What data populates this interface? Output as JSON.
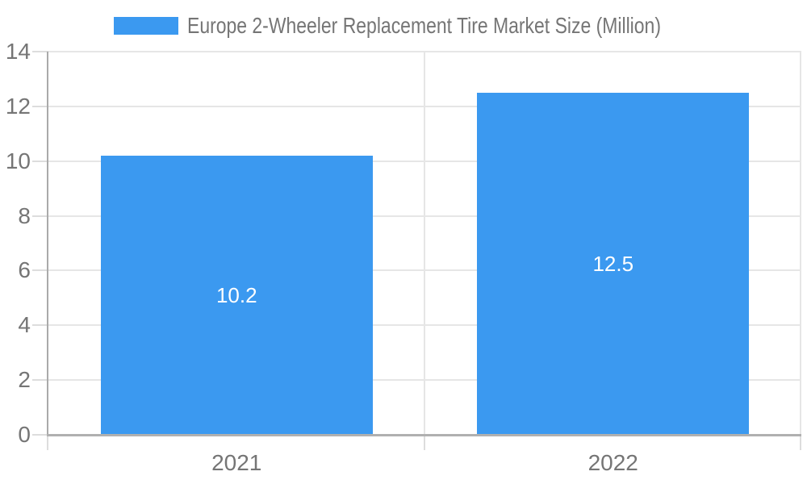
{
  "chart_data": {
    "type": "bar",
    "title": "Europe 2-Wheeler Replacement Tire Market Size (Million)",
    "legend": {
      "label": "Europe 2-Wheeler Replacement Tire Market Size (Million)",
      "position": "top"
    },
    "categories": [
      "2021",
      "2022"
    ],
    "values": [
      10.2,
      12.5
    ],
    "data_labels": [
      "10.2",
      "12.5"
    ],
    "xlabel": "",
    "ylabel": "",
    "ylim": [
      0,
      14
    ],
    "yticks": [
      0,
      2,
      4,
      6,
      8,
      10,
      12,
      14
    ],
    "grid": true,
    "colors": {
      "bar": "#3B99F0",
      "bar_value_label": "#ffffff",
      "axis_text": "#757575",
      "gridline": "#e6e6e6",
      "tick": "#dddddd",
      "axis_line": "#aaaaaa",
      "baseline": "#b0b0b0",
      "background": "#ffffff"
    }
  }
}
